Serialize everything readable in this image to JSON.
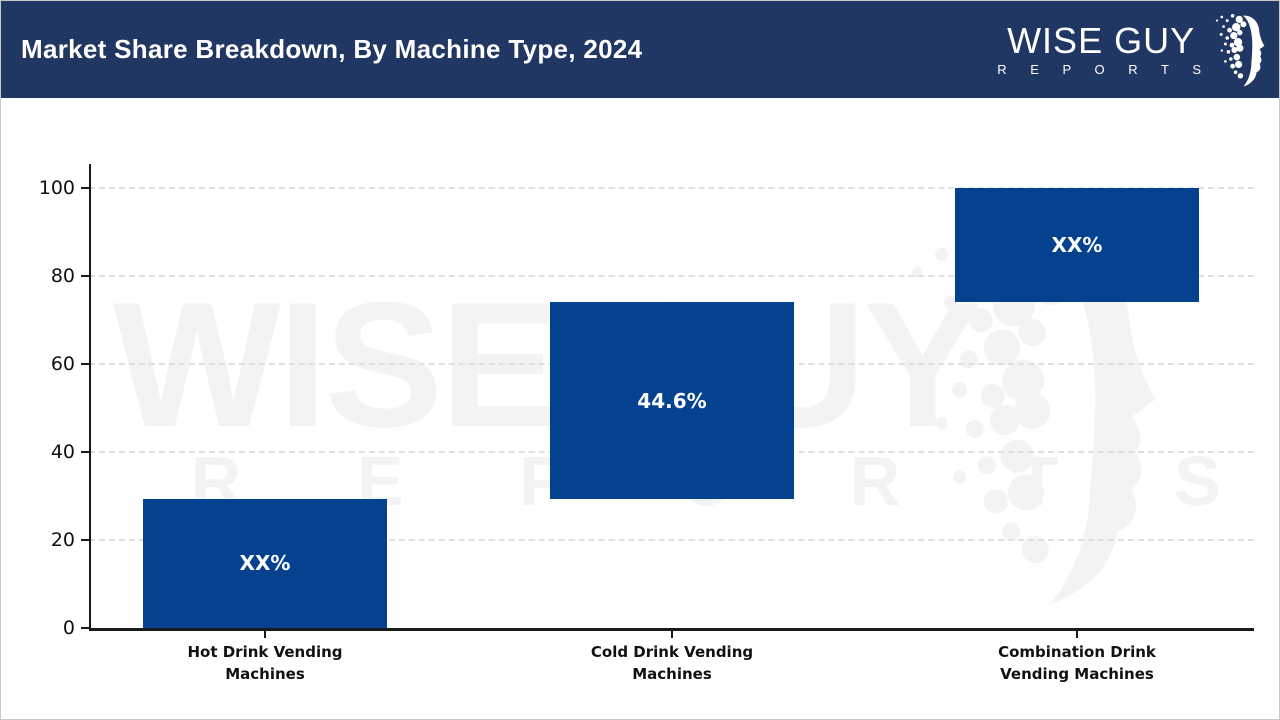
{
  "header": {
    "title": "Market Share Breakdown, By Machine Type, 2024",
    "logo": {
      "line1": "WISE GUY",
      "line2": "R E P O R T S",
      "icon": "face-profile-dots-icon"
    }
  },
  "watermark": {
    "line1": "WISE GUY",
    "line2": "R E P O R T S",
    "icon": "face-profile-dots-icon"
  },
  "colors": {
    "header_bg": "#213763",
    "bar": "#04428f",
    "axis": "#1a1a1a",
    "grid": "#e0e0e0",
    "watermark": "#f3f3f6",
    "bar_label_text": "#ffffff",
    "page_border": "#c9c9c9"
  },
  "chart_data": {
    "type": "bar",
    "subtype": "floating-segment (waterfall style)",
    "title": "Market Share Breakdown, By Machine Type, 2024",
    "categories": [
      "Hot Drink Vending Machines",
      "Cold Drink Vending Machines",
      "Combination Drink Vending Machines"
    ],
    "categories_wrapped": [
      [
        "Hot Drink Vending",
        "Machines"
      ],
      [
        "Cold Drink Vending",
        "Machines"
      ],
      [
        "Combination Drink",
        "Vending Machines"
      ]
    ],
    "segments": [
      {
        "category": "Hot Drink Vending Machines",
        "start": 0,
        "end": 29.4,
        "label": "XX%"
      },
      {
        "category": "Cold Drink Vending Machines",
        "start": 29.4,
        "end": 74,
        "label": "44.6%"
      },
      {
        "category": "Combination Drink Vending Machines",
        "start": 74,
        "end": 100,
        "label": "XX%"
      }
    ],
    "ylim": [
      0,
      100
    ],
    "yticks": [
      0,
      20,
      40,
      60,
      80,
      100
    ],
    "xlabel": "",
    "ylabel": "",
    "grid": "horizontal dashed",
    "legend": "none"
  }
}
